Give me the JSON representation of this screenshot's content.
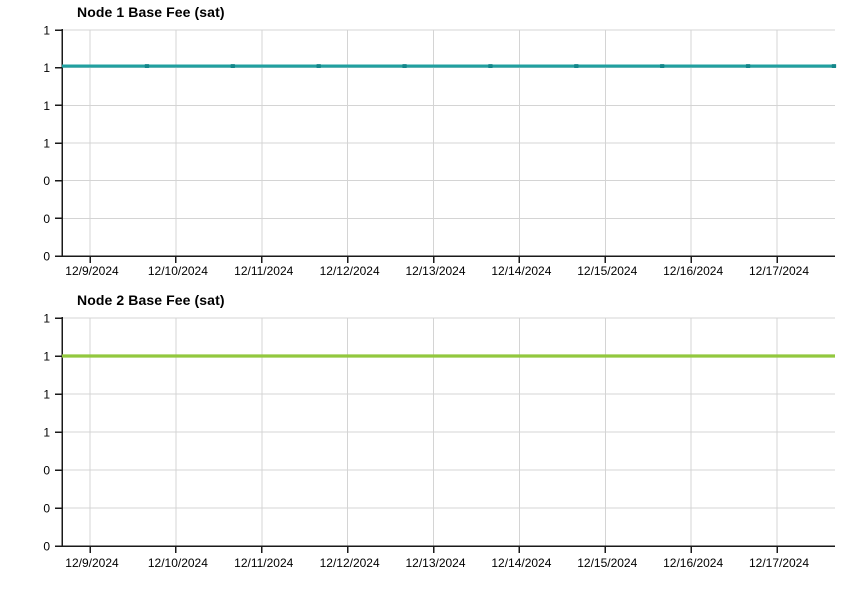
{
  "page": {
    "background": "#ffffff",
    "grid_color": "#d4d4d4",
    "axis_color": "#1a1a1a",
    "text_color": "#000000"
  },
  "chart_data": [
    {
      "type": "line",
      "title": "Node 1 Base Fee (sat)",
      "x": [
        "12/9/2024",
        "12/10/2024",
        "12/11/2024",
        "12/12/2024",
        "12/13/2024",
        "12/14/2024",
        "12/15/2024",
        "12/16/2024",
        "12/17/2024"
      ],
      "series": [
        {
          "name": "Node 1 Base Fee (sat)",
          "values": [
            1,
            1,
            1,
            1,
            1,
            1,
            1,
            1,
            1
          ]
        }
      ],
      "xlabel": "",
      "ylabel": "",
      "ylim": [
        0,
        1.2
      ],
      "y_ticks": [
        0,
        0.2,
        0.4,
        0.6,
        0.8,
        1.0,
        1.2
      ],
      "y_tick_labels_top_to_bottom": [
        "1",
        "1",
        "1",
        "1",
        "0",
        "0",
        "0"
      ],
      "grid": true,
      "legend": "none",
      "line_color": "#21a0a0",
      "marker_color": "#13868a",
      "show_point_markers": true
    },
    {
      "type": "line",
      "title": "Node 2 Base Fee (sat)",
      "x": [
        "12/9/2024",
        "12/10/2024",
        "12/11/2024",
        "12/12/2024",
        "12/13/2024",
        "12/14/2024",
        "12/15/2024",
        "12/16/2024",
        "12/17/2024"
      ],
      "series": [
        {
          "name": "Node 2 Base Fee (sat)",
          "values": [
            1,
            1,
            1,
            1,
            1,
            1,
            1,
            1,
            1
          ]
        }
      ],
      "xlabel": "",
      "ylabel": "",
      "ylim": [
        0,
        1.2
      ],
      "y_ticks": [
        0,
        0.2,
        0.4,
        0.6,
        0.8,
        1.0,
        1.2
      ],
      "y_tick_labels_top_to_bottom": [
        "1",
        "1",
        "1",
        "1",
        "0",
        "0",
        "0"
      ],
      "grid": true,
      "legend": "none",
      "line_color": "#92c83e",
      "marker_color": "#92c83e",
      "show_point_markers": false
    }
  ]
}
